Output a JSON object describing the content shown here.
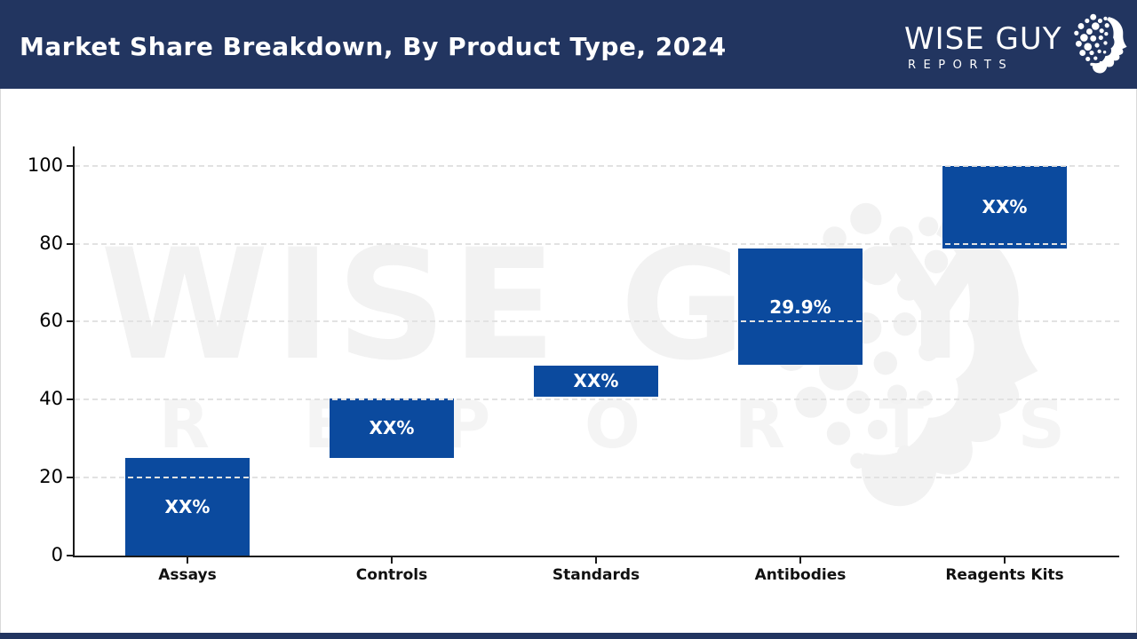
{
  "header": {
    "title": "Market Share Breakdown, By Product Type, 2024",
    "logo": {
      "brand": "WISE GUY",
      "sub": "REPORTS"
    }
  },
  "watermark": {
    "brand": "WISE GUY",
    "sub": "R E P O R T S"
  },
  "colors": {
    "header_bg": "#223560",
    "bar": "#0b4a9e",
    "bar_label": "#ffffff",
    "grid": "#e2e2e2",
    "axis": "#1a1a1a",
    "watermark": "#f2f2f2",
    "frame_border": "#d9d9d9"
  },
  "chart_data": {
    "type": "bar",
    "subtype": "waterfall",
    "title": "Market Share Breakdown, By Product Type, 2024",
    "categories": [
      "Assays",
      "Controls",
      "Standards",
      "Antibodies",
      "Reagents Kits"
    ],
    "segments": [
      {
        "category": "Assays",
        "start": 0,
        "end": 25.1,
        "label": "XX%"
      },
      {
        "category": "Controls",
        "start": 25.1,
        "end": 40.3,
        "label": "XX%"
      },
      {
        "category": "Standards",
        "start": 40.8,
        "end": 48.8,
        "label": "XX%"
      },
      {
        "category": "Antibodies",
        "start": 48.9,
        "end": 78.8,
        "label": "29.9%"
      },
      {
        "category": "Reagents Kits",
        "start": 78.8,
        "end": 100,
        "label": "XX%"
      }
    ],
    "xlabel": "",
    "ylabel": "",
    "ylim": [
      0,
      105
    ],
    "yticks": [
      0,
      20,
      40,
      60,
      80,
      100
    ],
    "grid": "horizontal-dashed",
    "legend": "none"
  }
}
